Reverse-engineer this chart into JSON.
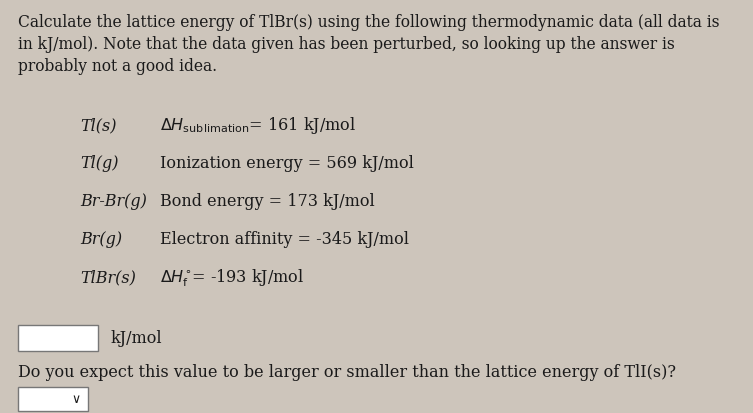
{
  "background_color": "#cdc5bb",
  "title_text": "Calculate the lattice energy of TlBr(s) using the following thermodynamic data (all data is\nin kJ/mol). Note that the data given has been perturbed, so looking up the answer is\nprobably not a good idea.",
  "rows": [
    {
      "col1": "Tl(s)",
      "col2_math": "$\\Delta H_{\\mathrm{sublimation}}$= 161 kJ/mol"
    },
    {
      "col1": "Tl(g)",
      "col2_plain": "Ionization energy = 569 kJ/mol"
    },
    {
      "col1": "Br-Br(g)",
      "col2_plain": "Bond energy = 173 kJ/mol"
    },
    {
      "col1": "Br(g)",
      "col2_plain": "Electron affinity = -345 kJ/mol"
    },
    {
      "col1": "TlBr(s)",
      "col2_math": "$\\Delta H^{\\circ}_{\\mathrm{f}}$= -193 kJ/mol"
    }
  ],
  "answer_label": "kJ/mol",
  "question_text": "Do you expect this value to be larger or smaller than the lattice energy of TlI(s)?",
  "text_color": "#1a1a1a",
  "font_size_title": 11.2,
  "font_size_body": 11.5
}
